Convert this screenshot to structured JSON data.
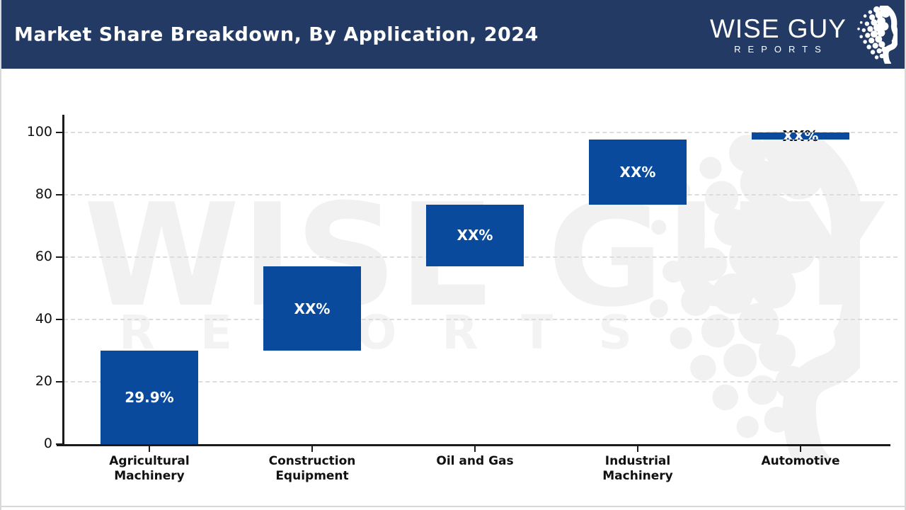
{
  "header": {
    "title": "Market Share Breakdown, By Application, 2024",
    "bg_color": "#223a64",
    "logo": {
      "line1": "WISE GUY",
      "line2": "R E P O R T S"
    }
  },
  "watermark": {
    "line1": "WISE GUY",
    "line2": "REPORTS"
  },
  "chart_data": {
    "type": "bar",
    "subtype": "floating-segment-waterfall",
    "title": "Market Share Breakdown, By Application, 2024",
    "categories": [
      "Agricultural Machinery",
      "Construction Equipment",
      "Oil and Gas",
      "Industrial Machinery",
      "Automotive"
    ],
    "category_lines": [
      "Agricultural\nMachinery",
      "Construction\nEquipment",
      "Oil and Gas",
      "Industrial\nMachinery",
      "Automotive"
    ],
    "segments": [
      {
        "category": "Agricultural Machinery",
        "start": 0,
        "end": 29.9,
        "label": "29.9%"
      },
      {
        "category": "Construction Equipment",
        "start": 29.9,
        "end": 57.1,
        "label": "XX%"
      },
      {
        "category": "Oil and Gas",
        "start": 57.1,
        "end": 76.9,
        "label": "XX%"
      },
      {
        "category": "Industrial Machinery",
        "start": 76.9,
        "end": 97.7,
        "label": "XX%"
      },
      {
        "category": "Automotive",
        "start": 97.7,
        "end": 100,
        "label": "XX%"
      }
    ],
    "xlabel": "",
    "ylabel": "",
    "yticks": [
      0,
      20,
      40,
      60,
      80,
      100
    ],
    "ylim": [
      0,
      104
    ],
    "grid": "dashed-horizontal",
    "legend": "none",
    "bar_color": "#0a4a9d",
    "bar_label_color": "#ffffff",
    "thin_bar_label_color": "#111111",
    "axis_color": "#1a1a1a"
  }
}
